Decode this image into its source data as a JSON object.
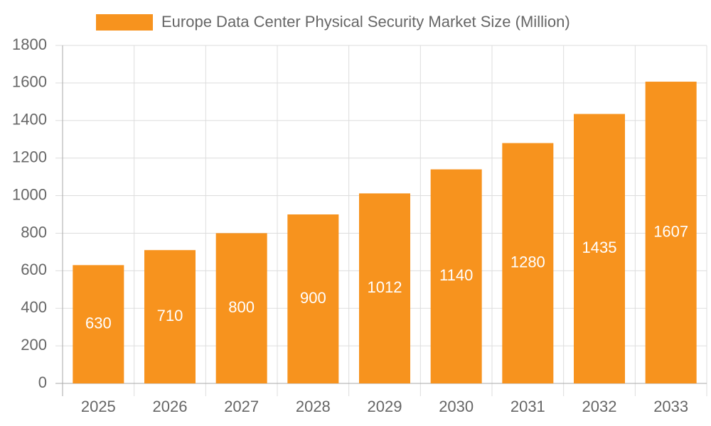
{
  "chart_data": {
    "type": "bar",
    "categories": [
      "2025",
      "2026",
      "2027",
      "2028",
      "2029",
      "2030",
      "2031",
      "2032",
      "2033"
    ],
    "series": [
      {
        "name": "Europe Data Center Physical Security Market Size (Million)",
        "color": "#f7931e",
        "values": [
          630,
          710,
          800,
          900,
          1012,
          1140,
          1280,
          1435,
          1607
        ]
      }
    ],
    "ylim": [
      0,
      1800
    ],
    "yticks": [
      0,
      200,
      400,
      600,
      800,
      1000,
      1200,
      1400,
      1600,
      1800
    ],
    "grid": true
  }
}
